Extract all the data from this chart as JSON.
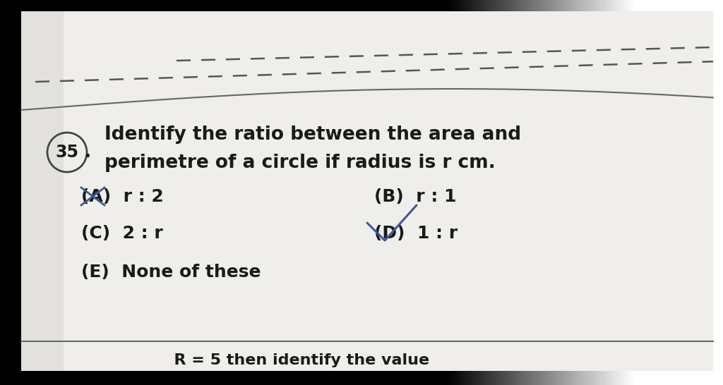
{
  "bg_left_color": "#b0b0b0",
  "bg_right_color": "#d8d8d8",
  "page_color": "#e8e6e2",
  "text_color": "#1a1a1a",
  "dashed_color": "#555555",
  "separator_color": "#666666",
  "blue_mark_color": "#3a5a9a",
  "question_number": "35",
  "q_line1": "Identify the ratio between the area and",
  "q_line2": "perimetre of a circle if radius is r cm.",
  "opt_A": "(A)  r : 2",
  "opt_B": "(B)  r : 1",
  "opt_C": "(C)  2 : r",
  "opt_D": "(D)  1 : r",
  "opt_E": "(E)  None of these",
  "bottom_text": "      R = 5 then identify the value",
  "fsize_q": 19,
  "fsize_opt": 18,
  "fsize_num": 17
}
